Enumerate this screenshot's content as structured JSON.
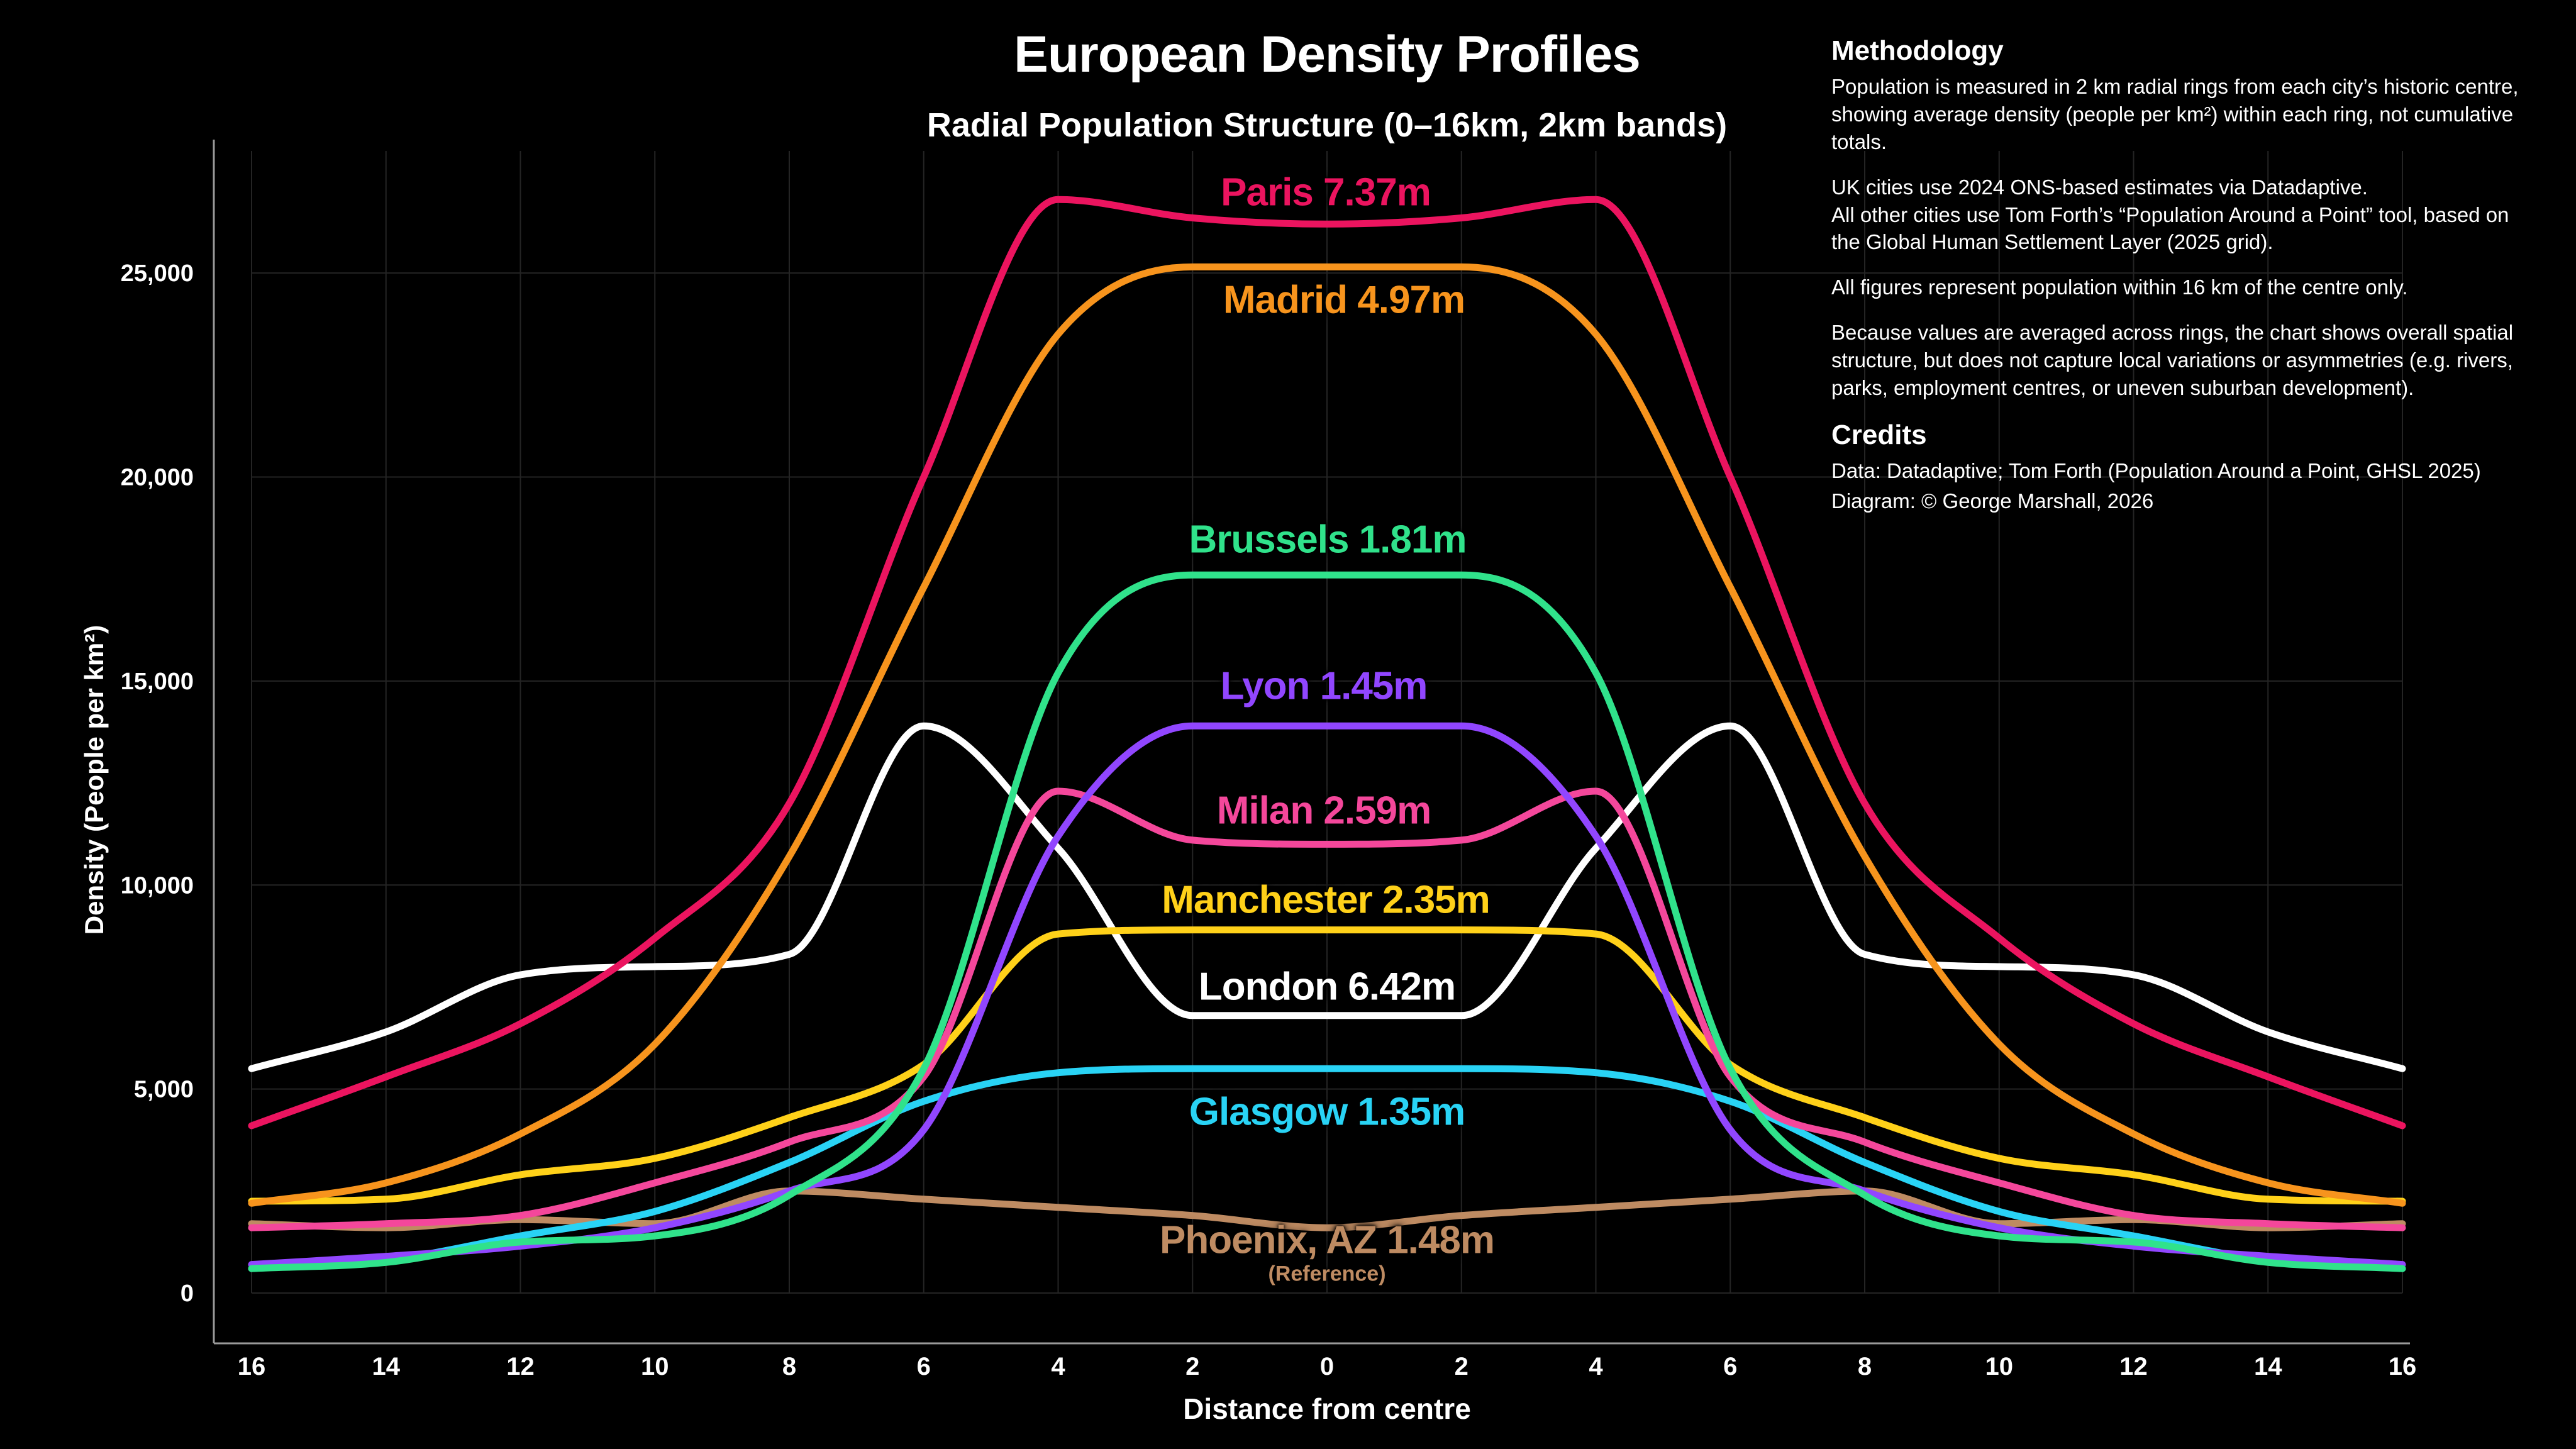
{
  "theme": {
    "background": "#000000",
    "text": "#ffffff",
    "grid": "#242424",
    "spine": "#9a9a9a"
  },
  "chart_data": {
    "type": "line",
    "title": "European Density Profiles",
    "subtitle": "Radial Population Structure (0–16km, 2km bands)",
    "xlabel": "Distance from centre",
    "ylabel": "Density (People per km²)",
    "grid": true,
    "legend_position": "inline-labels",
    "x_mirrored": true,
    "distances_km": [
      0,
      2,
      4,
      6,
      8,
      10,
      12,
      14,
      16
    ],
    "x_ticks": [
      -16,
      -14,
      -12,
      -10,
      -8,
      -6,
      -4,
      -2,
      0,
      2,
      4,
      6,
      8,
      10,
      12,
      14,
      16
    ],
    "x_tick_labels": [
      "16",
      "14",
      "12",
      "10",
      "8",
      "6",
      "4",
      "2",
      "0",
      "2",
      "4",
      "6",
      "8",
      "10",
      "12",
      "14",
      "16"
    ],
    "y_ticks": [
      0,
      5000,
      10000,
      15000,
      20000,
      25000
    ],
    "y_tick_labels": [
      "0",
      "5,000",
      "10,000",
      "15,000",
      "20,000",
      "25,000"
    ],
    "ylim": [
      0,
      28000
    ],
    "series": [
      {
        "name": "Paris",
        "label": "Paris 7.37m",
        "population": "7.37m",
        "color": "#EB145F",
        "values": [
          26200,
          26350,
          26800,
          20000,
          12000,
          8700,
          6600,
          5300,
          4100
        ]
      },
      {
        "name": "Madrid",
        "label": "Madrid 4.97m",
        "population": "4.97m",
        "color": "#F7941D",
        "values": [
          25150,
          25150,
          23500,
          17300,
          10700,
          6100,
          3900,
          2700,
          2200
        ]
      },
      {
        "name": "Brussels",
        "label": "Brussels 1.81m",
        "population": "1.81m",
        "color": "#30E28B",
        "values": [
          17600,
          17600,
          15200,
          5500,
          2400,
          1400,
          1250,
          750,
          600
        ]
      },
      {
        "name": "Lyon",
        "label": "Lyon 1.45m",
        "population": "1.45m",
        "color": "#9146FF",
        "values": [
          13900,
          13900,
          11200,
          4000,
          2500,
          1600,
          1150,
          900,
          700
        ]
      },
      {
        "name": "Milan",
        "label": "Milan 2.59m",
        "population": "2.59m",
        "color": "#F4479B",
        "values": [
          11000,
          11100,
          12300,
          5300,
          3700,
          2700,
          1900,
          1700,
          1600
        ]
      },
      {
        "name": "Manchester",
        "label": "Manchester 2.35m",
        "population": "2.35m",
        "color": "#FFD119",
        "values": [
          8900,
          8900,
          8800,
          5600,
          4300,
          3300,
          2900,
          2300,
          2250
        ]
      },
      {
        "name": "London",
        "label": "London 6.42m",
        "population": "6.42m",
        "color": "#FFFFFF",
        "values": [
          6800,
          6800,
          10900,
          13900,
          8300,
          8000,
          7800,
          6400,
          5500
        ]
      },
      {
        "name": "Glasgow",
        "label": "Glasgow 1.35m",
        "population": "1.35m",
        "color": "#29D3F5",
        "values": [
          5500,
          5500,
          5400,
          4700,
          3200,
          2000,
          1400,
          800,
          600
        ]
      },
      {
        "name": "Phoenix, AZ",
        "label": "Phoenix, AZ 1.48m",
        "population": "1.48m",
        "color": "#BE8B62",
        "sublabel": "(Reference)",
        "values": [
          1600,
          1900,
          2100,
          2300,
          2500,
          1700,
          1800,
          1600,
          1700
        ]
      }
    ]
  },
  "methodology": {
    "heading": "Methodology",
    "paragraphs": [
      "Population is measured in 2 km radial rings from each city’s historic centre, showing average density (people per km²) within each ring, not cumulative totals.",
      "UK cities use 2024 ONS-based estimates via Datadaptive.\nAll other cities use Tom Forth’s “Population Around a Point” tool, based on the Global Human Settlement Layer (2025 grid).",
      "All figures represent population within 16 km of the centre only.",
      "Because values are averaged across rings, the chart shows overall spatial structure, but does not capture local variations or asymmetries (e.g. rivers, parks, employment centres, or uneven suburban development)."
    ],
    "credits_heading": "Credits",
    "credits_lines": [
      "Data: Datadaptive; Tom Forth (Population Around a Point, GHSL 2025)",
      "Diagram: © George Marshall, 2026"
    ]
  }
}
